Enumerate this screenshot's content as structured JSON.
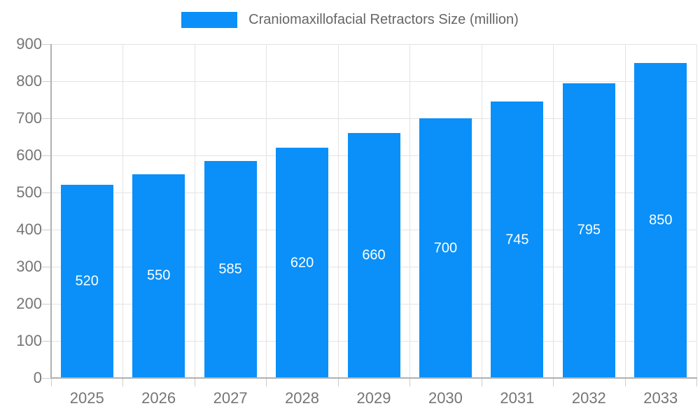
{
  "legend": {
    "label": "Craniomaxillofacial Retractors Size (million)"
  },
  "colors": {
    "bar": "#0a90f8",
    "axis_line": "#b0b0b0",
    "gridline": "#e3e3e3",
    "tick": "#cccccc",
    "tick_label": "#757575",
    "value_label": "#ffffff",
    "legend_text": "#666666",
    "background": "#ffffff"
  },
  "chart_data": {
    "type": "bar",
    "title": "",
    "series_name": "Craniomaxillofacial Retractors Size (million)",
    "categories": [
      "2025",
      "2026",
      "2027",
      "2028",
      "2029",
      "2030",
      "2031",
      "2032",
      "2033"
    ],
    "values": [
      520,
      550,
      585,
      620,
      660,
      700,
      745,
      795,
      850
    ],
    "xlabel": "",
    "ylabel": "",
    "ylim": [
      0,
      900
    ],
    "ytick_step": 100,
    "grid": true,
    "legend_position": "top",
    "value_labels": "inside-center"
  }
}
